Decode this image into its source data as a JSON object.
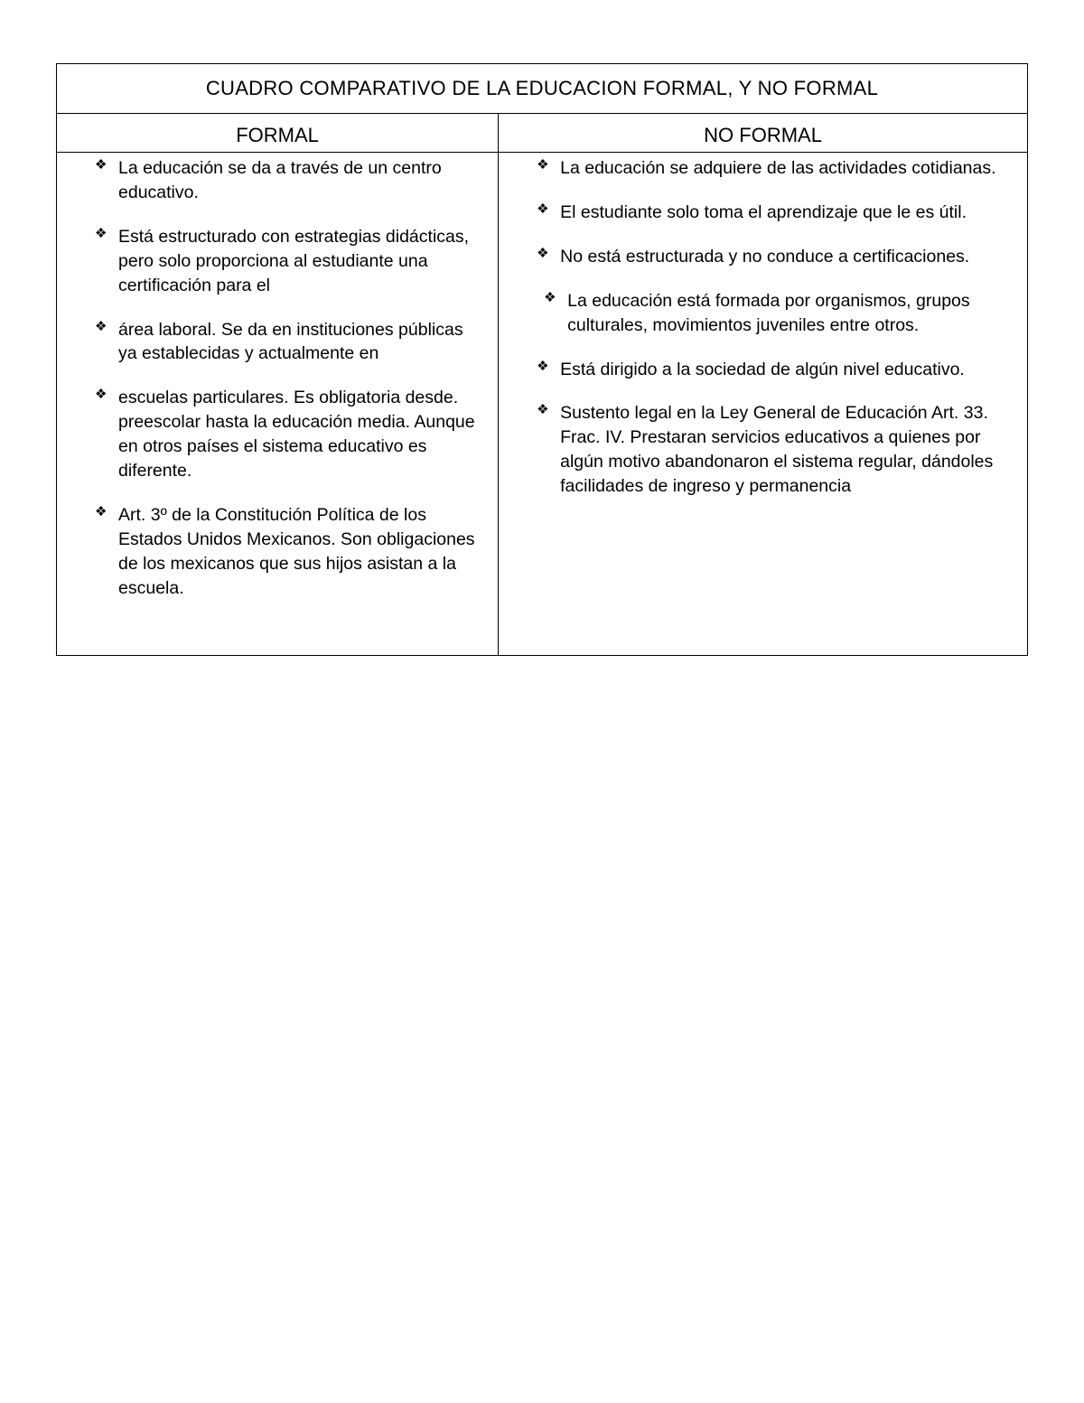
{
  "table": {
    "title": "CUADRO COMPARATIVO DE LA EDUCACION FORMAL, Y NO FORMAL",
    "columns": {
      "left": {
        "header": "FORMAL",
        "items": [
          "La educación se da a través de un centro educativo.",
          "Está estructurado con estrategias didácticas, pero solo proporciona al estudiante una certificación para el",
          "área laboral. Se da en instituciones públicas ya establecidas y actualmente en",
          "escuelas particulares. Es obligatoria desde. preescolar hasta la educación media. Aunque en otros países el sistema educativo es diferente.",
          "Art. 3º de la Constitución Política de los Estados Unidos Mexicanos. Son obligaciones de los mexicanos que sus hijos asistan a la escuela."
        ]
      },
      "right": {
        "header": "NO FORMAL",
        "items": [
          "La educación se adquiere de las actividades cotidianas.",
          "El estudiante solo toma el aprendizaje que le es útil.",
          "No está estructurada y no conduce a certificaciones.",
          " La educación está formada por organismos, grupos culturales, movimientos juveniles entre otros.",
          "Está dirigido a la sociedad de algún nivel educativo.",
          "Sustento legal en la Ley General de Educación Art. 33. Frac. IV. Prestaran servicios educativos a quienes por algún motivo abandonaron el sistema regular, dándoles facilidades de ingreso y permanencia"
        ]
      }
    },
    "styling": {
      "border_color": "#000000",
      "background_color": "#ffffff",
      "text_color": "#000000",
      "title_fontsize": 22,
      "header_fontsize": 22,
      "body_fontsize": 19.5,
      "bullet_glyph": "❖",
      "font_family": "Arial"
    }
  }
}
